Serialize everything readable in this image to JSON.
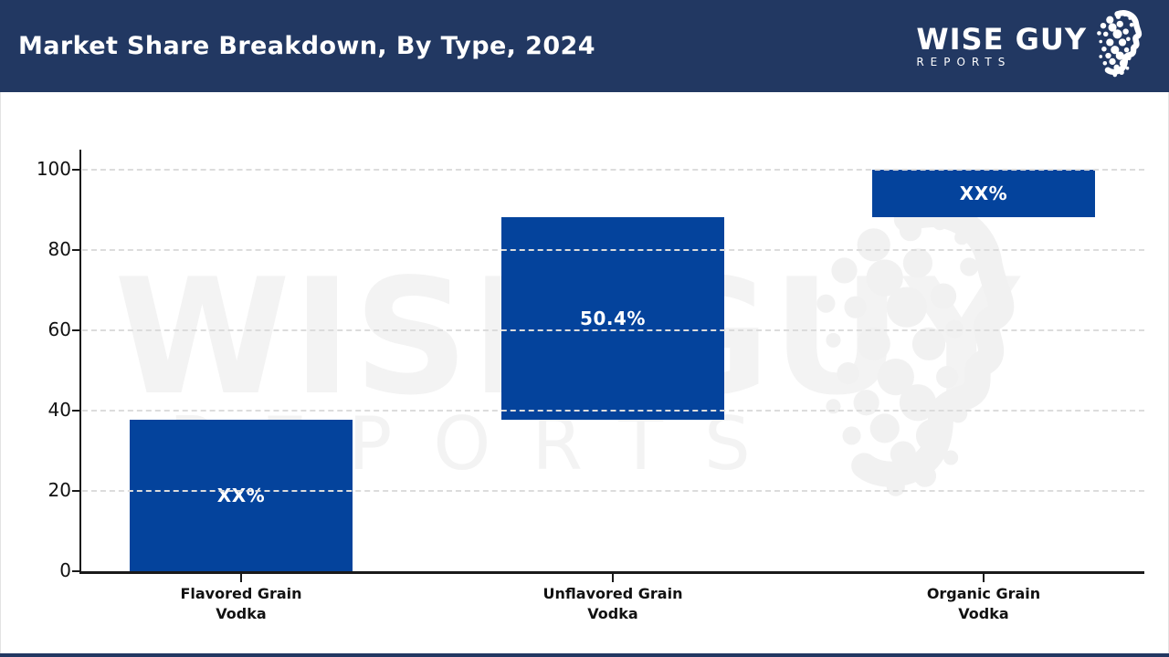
{
  "header": {
    "title": "Market Share Breakdown, By Type, 2024",
    "logo": {
      "wordmark": "WISE GUY",
      "subtitle": "REPORTS"
    }
  },
  "watermark": {
    "wordmark": "WISE GUY",
    "subtitle": "REPORTS"
  },
  "colors": {
    "header_bg": "#223862",
    "bar": "#04439c",
    "grid": "#dcdcdc",
    "axis": "#1a1a1a",
    "bar_label_text": "#ffffff",
    "watermark": "#f3f3f3"
  },
  "chart_data": {
    "type": "bar",
    "variant": "floating-segment (waterfall style) column chart",
    "title": "Market Share Breakdown, By Type, 2024",
    "categories": [
      "Flavored Grain\nVodka",
      "Unflavored Grain\nVodka",
      "Organic Grain\nVodka"
    ],
    "segments": [
      {
        "category": "Flavored Grain Vodka",
        "start": 0,
        "end": 37.8,
        "value_label": "XX%"
      },
      {
        "category": "Unflavored Grain Vodka",
        "start": 37.8,
        "end": 88.2,
        "value_label": "50.4%"
      },
      {
        "category": "Organic Grain Vodka",
        "start": 88.2,
        "end": 100,
        "value_label": "XX%"
      }
    ],
    "yticks": [
      0,
      20,
      40,
      60,
      80,
      100
    ],
    "ylim": [
      0,
      105
    ],
    "xlabel": "",
    "ylabel": "",
    "grid": "horizontal dashed lines, rendered over bars",
    "legend": "none"
  }
}
